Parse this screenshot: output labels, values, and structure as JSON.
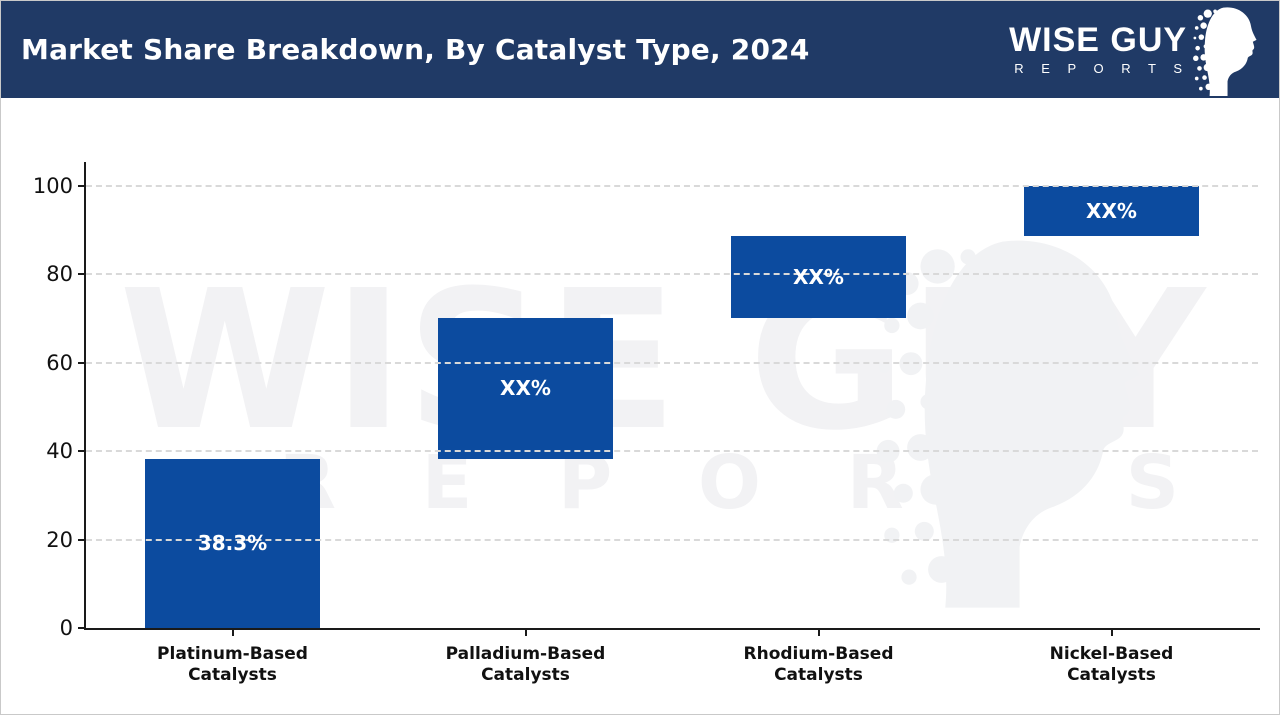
{
  "header": {
    "title": "Market Share Breakdown, By Catalyst Type, 2024",
    "brand": {
      "name_line": "WISE GUY",
      "reports_line": "R E P O R T S"
    }
  },
  "watermark": {
    "name_line": "WISE GUY",
    "reports_line": "R E P O R T S"
  },
  "colors": {
    "header_bg": "#203a66",
    "bar": "#0c4b9f",
    "grid": "#d9d9d9",
    "axis": "#1a1a1a",
    "bar_label": "#ffffff",
    "watermark": "#f2f2f4"
  },
  "chart_data": {
    "type": "bar",
    "subtype": "floating-waterfall",
    "title": "Market Share Breakdown, By Catalyst Type, 2024",
    "xlabel": "",
    "ylabel": "",
    "ylim": [
      0,
      105
    ],
    "yticks": [
      0,
      20,
      40,
      60,
      80,
      100
    ],
    "grid": "dashed-horizontal",
    "legend": "none",
    "categories": [
      "Platinum-Based Catalysts",
      "Palladium-Based Catalysts",
      "Rhodium-Based Catalysts",
      "Nickel-Based Catalysts"
    ],
    "bars": [
      {
        "category": "Platinum-Based Catalysts",
        "start": 0,
        "end": 38.3,
        "label": "38.3%"
      },
      {
        "category": "Palladium-Based Catalysts",
        "start": 38.3,
        "end": 70.2,
        "label": "XX%"
      },
      {
        "category": "Rhodium-Based Catalysts",
        "start": 70.2,
        "end": 88.7,
        "label": "XX%"
      },
      {
        "category": "Nickel-Based Catalysts",
        "start": 88.7,
        "end": 100,
        "label": "XX%"
      }
    ],
    "bar_color": "#0c4b9f",
    "label_color": "#ffffff"
  }
}
